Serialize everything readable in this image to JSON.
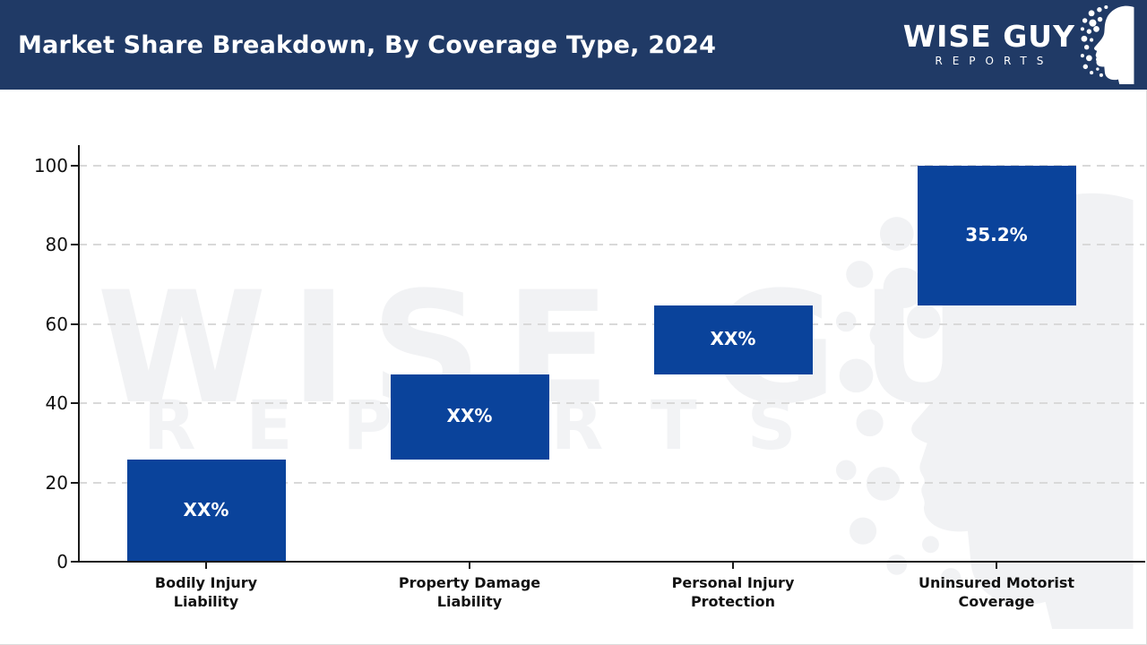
{
  "header": {
    "title": "Market Share Breakdown, By Coverage Type, 2024",
    "background": "#203a66",
    "logo": {
      "line1": "WISE GUY",
      "line2": "REPORTS"
    }
  },
  "watermark": {
    "line1": "WISE GUY",
    "line2": "REPORTS"
  },
  "chart_data": {
    "type": "bar",
    "variant": "waterfall",
    "title": "Market Share Breakdown, By Coverage Type, 2024",
    "categories": [
      "Bodily Injury Liability",
      "Property Damage Liability",
      "Personal Injury Protection",
      "Uninsured Motorist Coverage"
    ],
    "category_lines": [
      [
        "Bodily Injury",
        "Liability"
      ],
      [
        "Property Damage",
        "Liability"
      ],
      [
        "Personal Injury",
        "Protection"
      ],
      [
        "Uninsured Motorist",
        "Coverage"
      ]
    ],
    "bars": [
      {
        "category": "Bodily Injury Liability",
        "start": 0,
        "end": 25.8,
        "label": "XX%"
      },
      {
        "category": "Property Damage Liability",
        "start": 25.8,
        "end": 47.3,
        "label": "XX%"
      },
      {
        "category": "Personal Injury Protection",
        "start": 47.3,
        "end": 64.8,
        "label": "XX%"
      },
      {
        "category": "Uninsured Motorist Coverage",
        "start": 64.8,
        "end": 100,
        "label": "35.2%"
      }
    ],
    "ylim": [
      0,
      100
    ],
    "yticks": [
      0,
      20,
      40,
      60,
      80,
      100
    ],
    "xlabel": "",
    "ylabel": "",
    "legend": "none",
    "grid": "horizontal-dashed",
    "bar_color": "#0a439b",
    "grid_color": "#d9d9d9",
    "axis_color": "#1a1a1a"
  }
}
